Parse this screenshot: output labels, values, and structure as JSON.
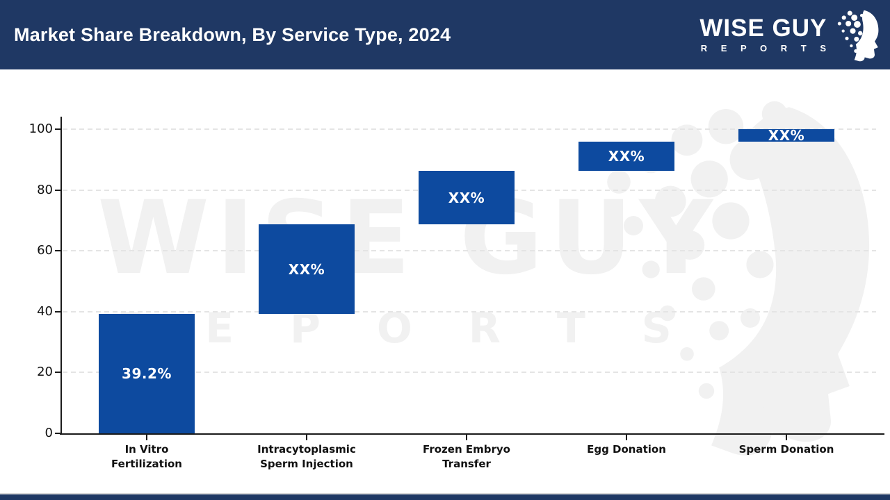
{
  "header": {
    "title": "Market Share Breakdown, By Service Type, 2024",
    "logo_line1": "WISE GUY",
    "logo_line2": "R E P O R T S",
    "bg_color": "#1f3864"
  },
  "watermark": {
    "line1": "WISE GUY",
    "line2": "R E P O R T S"
  },
  "chart_data": {
    "type": "bar",
    "subtype": "waterfall",
    "title": "Market Share Breakdown, By Service Type, 2024",
    "categories": [
      "In Vitro Fertilization",
      "Intracytoplasmic Sperm Injection",
      "Frozen Embryo Transfer",
      "Egg Donation",
      "Sperm Donation"
    ],
    "category_lines": [
      [
        "In Vitro",
        "Fertilization"
      ],
      [
        "Intracytoplasmic",
        "Sperm Injection"
      ],
      [
        "Frozen Embryo",
        "Transfer"
      ],
      [
        "Egg Donation"
      ],
      [
        "Sperm Donation"
      ]
    ],
    "segments": [
      {
        "label": "39.2%",
        "start": 0,
        "end": 39.2
      },
      {
        "label": "XX%",
        "start": 39.2,
        "end": 68.7
      },
      {
        "label": "XX%",
        "start": 68.7,
        "end": 86.2
      },
      {
        "label": "XX%",
        "start": 86.2,
        "end": 96.0
      },
      {
        "label": "XX%",
        "start": 96.0,
        "end": 100.0
      }
    ],
    "ylim": [
      0,
      100
    ],
    "yticks": [
      0,
      20,
      40,
      60,
      80,
      100
    ],
    "xlabel": "",
    "ylabel": "",
    "grid": "horizontal-dashed",
    "legend": "none",
    "bar_color": "#0d4a9f",
    "bar_label_color": "#ffffff"
  },
  "footer": {
    "bar_color": "#1f3864"
  }
}
